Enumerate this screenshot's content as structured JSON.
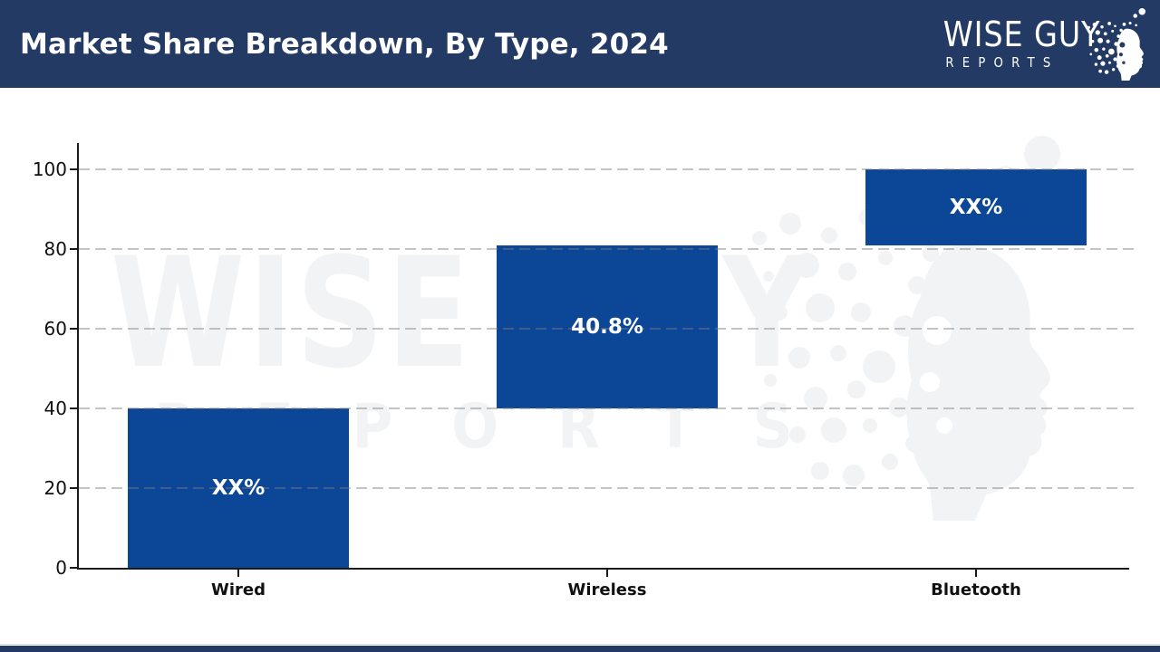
{
  "header": {
    "title": "Market Share Breakdown, By Type, 2024",
    "bg_color": "#223A64",
    "logo": {
      "line1": "WISE GUY",
      "line2": "REPORTS"
    }
  },
  "watermark": {
    "line1": "WISE GUY",
    "line2": "REPORTS"
  },
  "chart_data": {
    "type": "bar",
    "variant": "waterfall",
    "title": "Market Share Breakdown, By Type, 2024",
    "categories": [
      "Wired",
      "Wireless",
      "Bluetooth"
    ],
    "segments": [
      {
        "category": "Wired",
        "start": 0,
        "end": 40,
        "label": "XX%"
      },
      {
        "category": "Wireless",
        "start": 40,
        "end": 80.8,
        "label": "40.8%"
      },
      {
        "category": "Bluetooth",
        "start": 80.8,
        "end": 100,
        "label": "XX%"
      }
    ],
    "values_displayed": [
      "XX%",
      "40.8%",
      "XX%"
    ],
    "ylim": [
      0,
      100
    ],
    "yticks": [
      0,
      20,
      40,
      60,
      80,
      100
    ],
    "xlabel": "",
    "ylabel": "",
    "bar_color": "#0B4697",
    "grid_color": "rgba(125,125,125,0.45)",
    "grid_style": "dashed",
    "legend": "none"
  },
  "footer": {
    "bar_color": "#223A64"
  }
}
